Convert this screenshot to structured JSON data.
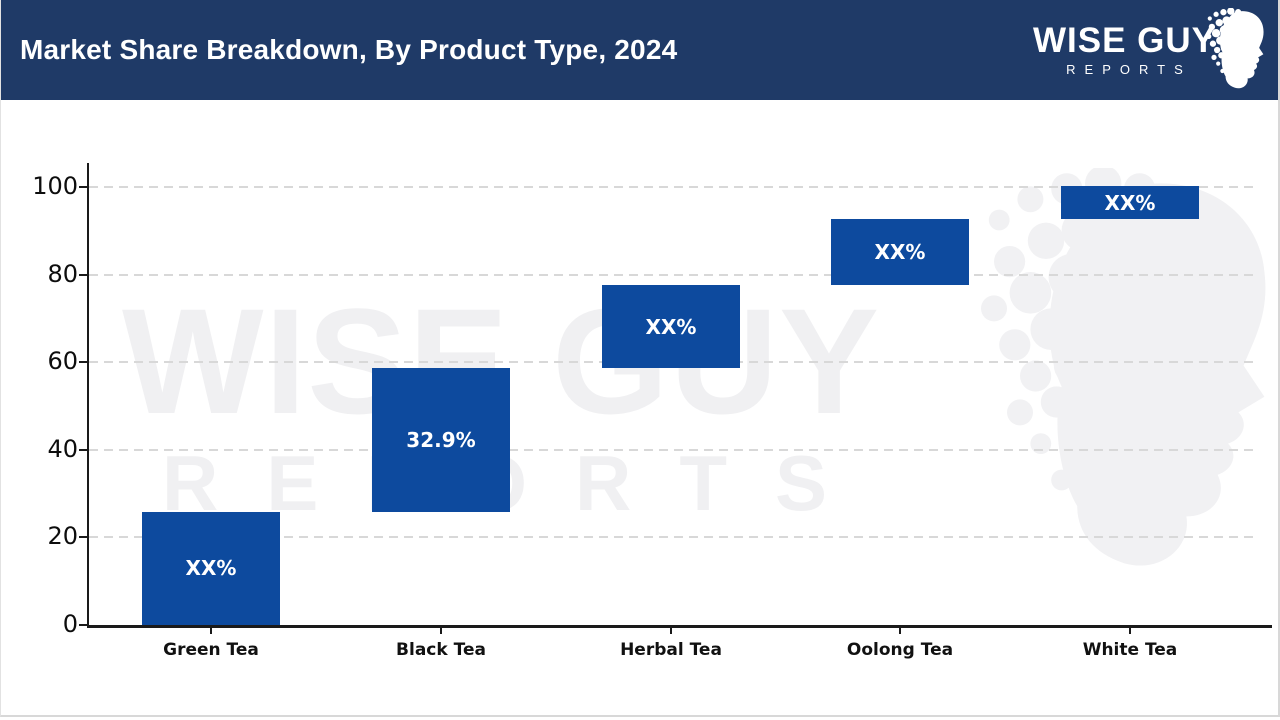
{
  "header": {
    "title": "Market Share Breakdown, By Product Type, 2024",
    "bg_color": "#1f3a67",
    "logo": {
      "line1": "WISE GUY",
      "line2": "REPORTS"
    }
  },
  "watermark": {
    "line1": "WISE GUY",
    "line2": "REPORTS"
  },
  "chart_data": {
    "type": "bar",
    "subtype": "waterfall-floating-bars",
    "title": "Market Share Breakdown, By Product Type, 2024",
    "categories": [
      "Green Tea",
      "Black Tea",
      "Herbal Tea",
      "Oolong Tea",
      "White Tea"
    ],
    "bars": [
      {
        "category": "Green Tea",
        "start": 0,
        "end": 25.8,
        "value": 25.8,
        "label": "XX%"
      },
      {
        "category": "Black Tea",
        "start": 25.8,
        "end": 58.7,
        "value": 32.9,
        "label": "32.9%"
      },
      {
        "category": "Herbal Tea",
        "start": 58.7,
        "end": 77.6,
        "value": 18.9,
        "label": "XX%"
      },
      {
        "category": "Oolong Tea",
        "start": 77.6,
        "end": 92.6,
        "value": 15.0,
        "label": "XX%"
      },
      {
        "category": "White Tea",
        "start": 92.6,
        "end": 100.3,
        "value": 7.7,
        "label": "XX%"
      }
    ],
    "xlabel": "",
    "ylabel": "",
    "ylim": [
      0,
      100
    ],
    "yticks": [
      0,
      20,
      40,
      60,
      80,
      100
    ],
    "grid": "horizontal-dashed",
    "legend": "none",
    "bar_color": "#0d4a9e",
    "value_label_color": "#ffffff",
    "gridline_color": "#d8d8d8",
    "axis_color": "#1a1a1a"
  }
}
